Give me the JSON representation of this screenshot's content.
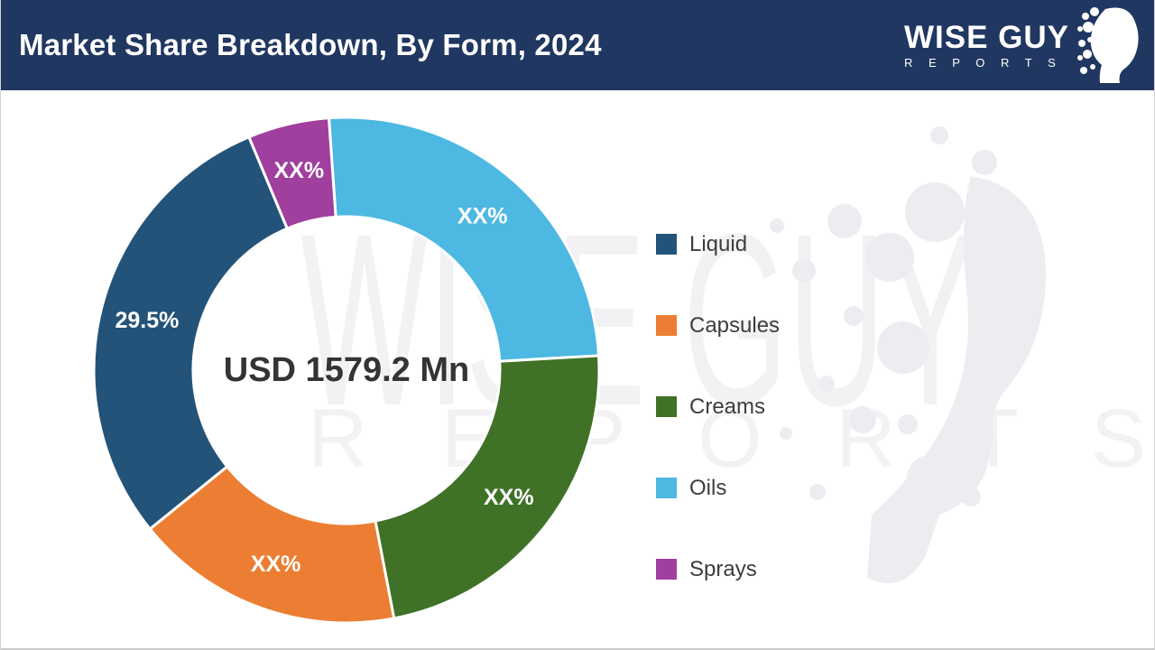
{
  "header": {
    "title": "Market Share Breakdown, By Form, 2024",
    "logo": {
      "name": "WISE GUY",
      "tagline": "R E P O R T S"
    }
  },
  "watermark": {
    "brand": "WISE GUY",
    "tagline": "R E P O R T S"
  },
  "chart_data": {
    "type": "pie",
    "subtype": "donut",
    "title": "Market Share Breakdown, By Form, 2024",
    "center_label": "USD 1579.2 Mn",
    "unit": "percent share",
    "start_angle_deg": -4,
    "series": [
      {
        "name": "Oils",
        "value": 25.2,
        "label": "XX%",
        "color": "#4DB8E2"
      },
      {
        "name": "Creams",
        "value": 22.9,
        "label": "XX%",
        "color": "#3F7227"
      },
      {
        "name": "Capsules",
        "value": 17.2,
        "label": "XX%",
        "color": "#EC7E33"
      },
      {
        "name": "Liquid",
        "value": 29.5,
        "label": "29.5%",
        "color": "#235379"
      },
      {
        "name": "Sprays",
        "value": 5.2,
        "label": "XX%",
        "color": "#A03F9D"
      }
    ],
    "legend": {
      "position": "right",
      "items": [
        "Liquid",
        "Capsules",
        "Creams",
        "Oils",
        "Sprays"
      ]
    },
    "colors": {
      "header": "#203761",
      "center_text": "#343434",
      "slice_label": "#ffffff",
      "watermark": "#f2f2f5"
    }
  }
}
